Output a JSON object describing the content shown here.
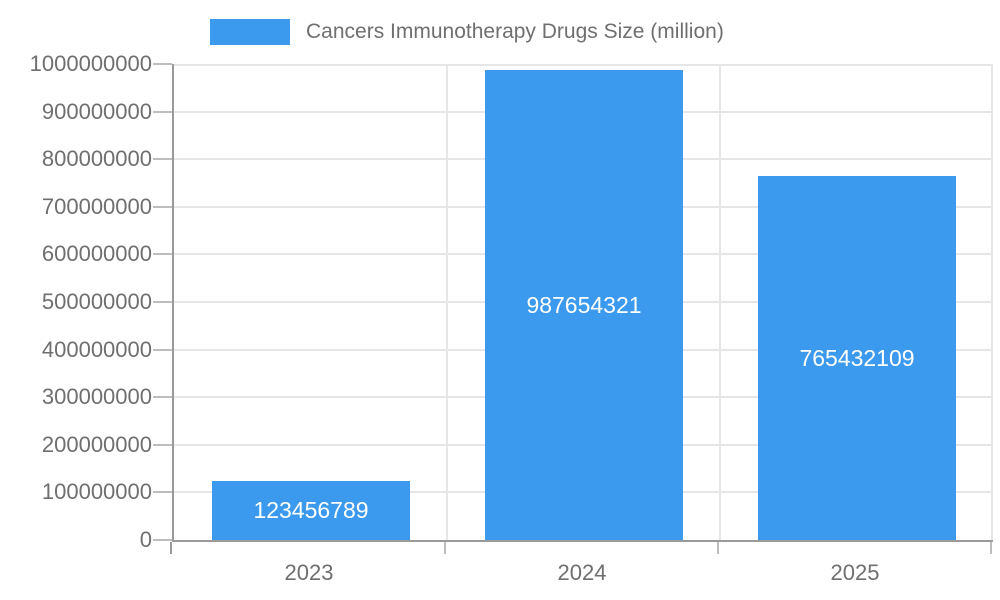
{
  "legend": {
    "label": "Cancers Immunotherapy Drugs Size (million)"
  },
  "chart_data": {
    "type": "bar",
    "title": "Cancers Immunotherapy Drugs Size (million)",
    "categories": [
      "2023",
      "2024",
      "2025"
    ],
    "series": [
      {
        "name": "Cancers Immunotherapy Drugs Size (million)",
        "values": [
          123456789,
          987654321,
          765432109
        ]
      }
    ],
    "value_labels": [
      "123456789",
      "987654321",
      "765432109"
    ],
    "xlabel": "",
    "ylabel": "",
    "ylim": [
      0,
      1000000000
    ],
    "y_ticks": [
      0,
      100000000,
      200000000,
      300000000,
      400000000,
      500000000,
      600000000,
      700000000,
      800000000,
      900000000,
      1000000000
    ],
    "grid": true,
    "legend_position": "top-left",
    "colors": {
      "bar": "#3b99ee",
      "axis": "#9a9a9a",
      "grid": "#e6e6e6",
      "tick": "#bdbdbd",
      "tick_label": "#6f6f6f",
      "title": "#6f6f6f",
      "bar_label": "#ffffff",
      "background": "#ffffff"
    }
  }
}
